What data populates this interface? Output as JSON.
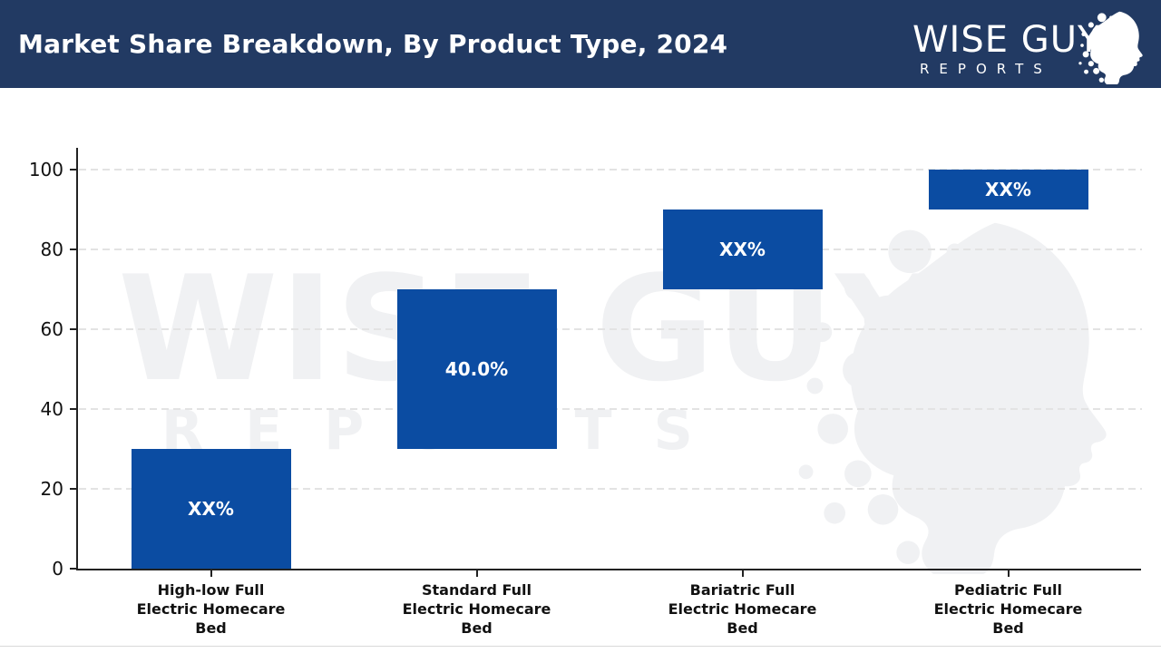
{
  "header": {
    "bg_color": "#223A63"
  },
  "logo": {
    "line1": "WISE GUY",
    "line2": "REPORTS"
  },
  "watermark": {
    "line1": "WISE GUY",
    "line2": "REPORTS"
  },
  "colors": {
    "header_bg": "#223A63",
    "bar": "#0B4CA2",
    "bar_label": "#FFFFFF",
    "grid": "#E3E3E3",
    "axis": "#222222",
    "watermark": "#F0F1F3"
  },
  "chart_data": {
    "type": "bar",
    "variant": "waterfall",
    "title": "Market Share Breakdown, By Product Type, 2024",
    "categories": [
      "High-low Full\nElectric Homecare\nBed",
      "Standard Full\nElectric Homecare\nBed",
      "Bariatric Full\nElectric Homecare\nBed",
      "Pediatric Full\nElectric Homecare\nBed"
    ],
    "segments": [
      {
        "label": "XX%",
        "start": 0,
        "end": 30
      },
      {
        "label": "40.0%",
        "start": 30,
        "end": 70
      },
      {
        "label": "XX%",
        "start": 70,
        "end": 90
      },
      {
        "label": "XX%",
        "start": 90,
        "end": 100
      }
    ],
    "values": [
      30,
      40,
      20,
      10
    ],
    "yticks": [
      0,
      20,
      40,
      60,
      80,
      100
    ],
    "ylim": [
      0,
      105.5
    ],
    "grid": true,
    "legend": false,
    "xlabel": "",
    "ylabel": ""
  }
}
